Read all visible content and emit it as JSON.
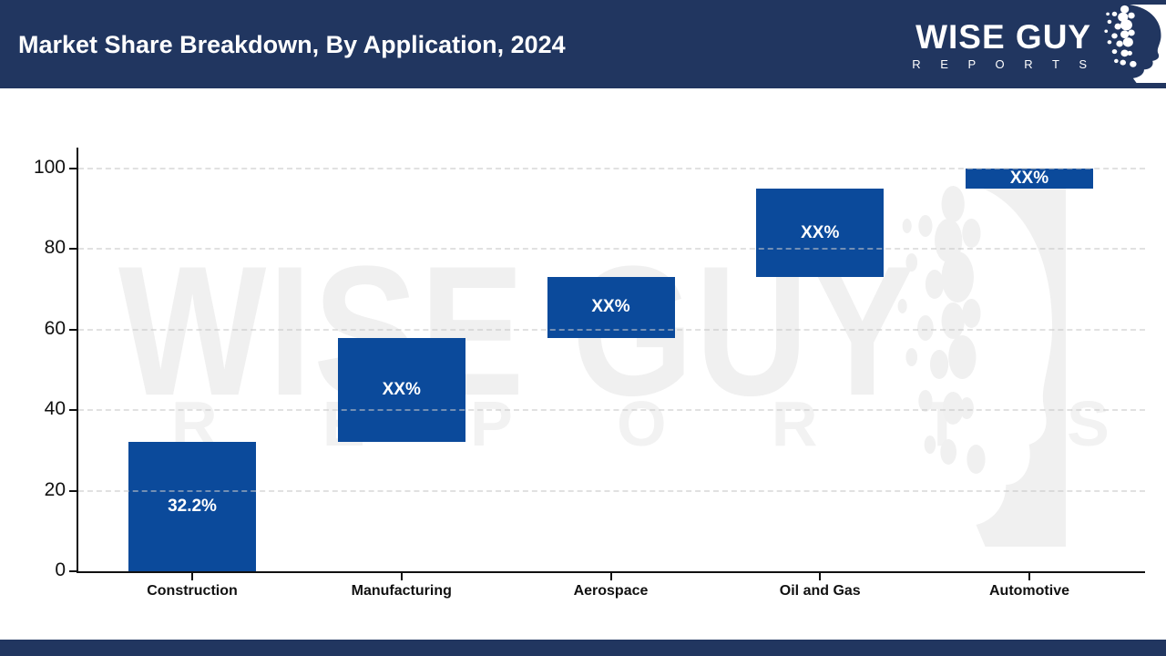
{
  "header": {
    "title": "Market Share Breakdown, By Application, 2024",
    "logo": {
      "line1": "WISE GUY",
      "line2": "R E P O R T S"
    }
  },
  "watermark": {
    "line1": "WISE GUY",
    "line2": "R E P O R T S"
  },
  "colors": {
    "header_bg": "#213660",
    "bar": "#0b4a9b",
    "axis": "#111111",
    "grid": "#c9c9c9",
    "watermark": "#f0f0f0",
    "label_on_bar": "#ffffff"
  },
  "chart_data": {
    "type": "bar",
    "subtype": "waterfall",
    "title": "Market Share Breakdown, By Application, 2024",
    "categories": [
      "Construction",
      "Manufacturing",
      "Aerospace",
      "Oil and Gas",
      "Automotive"
    ],
    "segments": [
      {
        "category": "Construction",
        "start": 0,
        "end": 32.2,
        "label": "32.2%"
      },
      {
        "category": "Manufacturing",
        "start": 32.2,
        "end": 58,
        "label": "XX%"
      },
      {
        "category": "Aerospace",
        "start": 58,
        "end": 73,
        "label": "XX%"
      },
      {
        "category": "Oil and Gas",
        "start": 73,
        "end": 95,
        "label": "XX%"
      },
      {
        "category": "Automotive",
        "start": 95,
        "end": 100,
        "label": "XX%"
      }
    ],
    "xlabel": "",
    "ylabel": "",
    "ylim": [
      0,
      105
    ],
    "yticks": [
      0,
      20,
      40,
      60,
      80,
      100
    ],
    "grid": true,
    "grid_style": "dashed",
    "legend": null
  }
}
